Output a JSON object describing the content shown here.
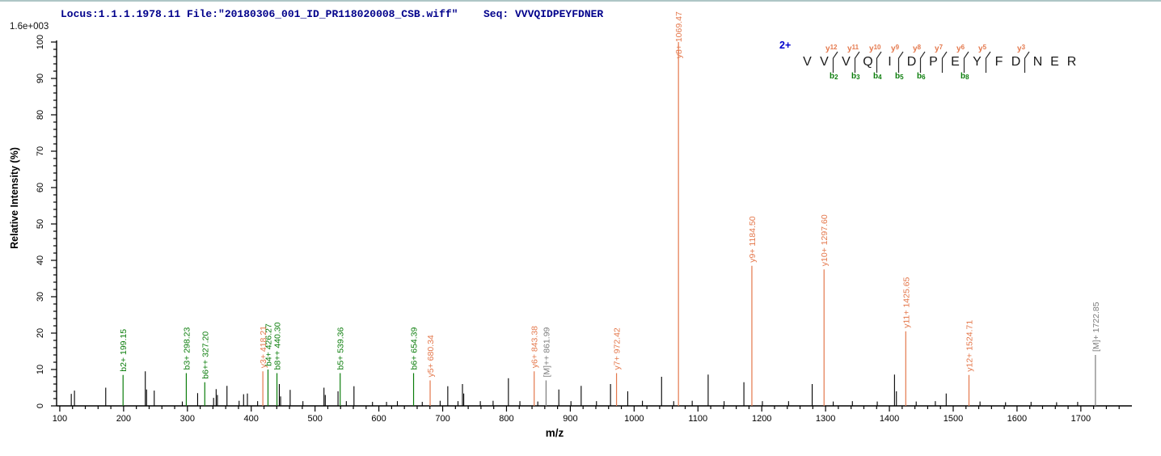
{
  "header": {
    "locus_file": "Locus:1.1.1.1978.11 File:\"20180306_001_ID_PR118020008_CSB.wiff\"",
    "seq_label": "Seq: VVVQIDPEYFDNER",
    "intensity_scale": "1.6e+003"
  },
  "colors": {
    "header_text": "#00008b",
    "charge_text": "#0000cc",
    "y_ion": "#e4784c",
    "b_ion": "#0b7d0b",
    "precursor": "#7d7d7d",
    "unlabeled_peak": "#000000",
    "axis": "#000000",
    "residue_text": "#1a1a1a",
    "marker_stroke": "#2a2a2a"
  },
  "peptide": {
    "charge_label": "2+",
    "residues": [
      "V",
      "V",
      "V",
      "Q",
      "I",
      "D",
      "P",
      "E",
      "Y",
      "F",
      "D",
      "N",
      "E",
      "R"
    ],
    "cleavages": [
      {
        "after": 2,
        "y": "y12",
        "b": "b2"
      },
      {
        "after": 3,
        "y": "y11",
        "b": "b3"
      },
      {
        "after": 4,
        "y": "y10",
        "b": "b4"
      },
      {
        "after": 5,
        "y": "y9",
        "b": "b5"
      },
      {
        "after": 6,
        "y": "y8",
        "b": "b6"
      },
      {
        "after": 7,
        "y": "y7",
        "b": null
      },
      {
        "after": 8,
        "y": "y6",
        "b": "b8"
      },
      {
        "after": 9,
        "y": "y5",
        "b": null
      },
      {
        "after": 11,
        "y": "y3",
        "b": null
      }
    ]
  },
  "chart_data": {
    "type": "bar",
    "subtype": "ms2-stick-spectrum",
    "title": "",
    "xlabel": "m/z",
    "ylabel": "Relative  Intensity (%)",
    "xlim": [
      95,
      1780
    ],
    "ylim": [
      0,
      100
    ],
    "grid": false,
    "x_ticks": {
      "major_start": 100,
      "major_end": 1700,
      "major_step": 100,
      "minor_step": 20,
      "minor_end": 1760
    },
    "y_ticks": {
      "major_step": 10,
      "minor_step": 2
    },
    "labeled_peaks": [
      {
        "label": "b2+ 199.15",
        "mz": 199.15,
        "intensity": 8.5,
        "type": "b"
      },
      {
        "label": "b3+ 298.23",
        "mz": 298.23,
        "intensity": 9,
        "type": "b"
      },
      {
        "label": "b6++ 327.20",
        "mz": 327.2,
        "intensity": 6.5,
        "type": "b"
      },
      {
        "label": "y3+ 418.21",
        "mz": 418.21,
        "intensity": 9.5,
        "type": "y"
      },
      {
        "label": "b4+ 426.27",
        "mz": 426.27,
        "intensity": 10,
        "type": "b"
      },
      {
        "label": "b8++ 440.30",
        "mz": 440.3,
        "intensity": 9,
        "type": "b"
      },
      {
        "label": "b5+ 539.36",
        "mz": 539.36,
        "intensity": 9,
        "type": "b"
      },
      {
        "label": "b6+ 654.39",
        "mz": 654.39,
        "intensity": 9,
        "type": "b"
      },
      {
        "label": "y5+ 680.34",
        "mz": 680.34,
        "intensity": 7,
        "type": "y"
      },
      {
        "label": "y6+ 843.38",
        "mz": 843.38,
        "intensity": 9.5,
        "type": "y"
      },
      {
        "label": "[M]++ 861.99",
        "mz": 861.99,
        "intensity": 7,
        "type": "M"
      },
      {
        "label": "y7+ 972.42",
        "mz": 972.42,
        "intensity": 9,
        "type": "y"
      },
      {
        "label": "y8+ 1069.47",
        "mz": 1069.47,
        "intensity": 100,
        "type": "y"
      },
      {
        "label": "y9+ 1184.50",
        "mz": 1184.5,
        "intensity": 38.5,
        "type": "y"
      },
      {
        "label": "y10+ 1297.60",
        "mz": 1297.6,
        "intensity": 37.5,
        "type": "y"
      },
      {
        "label": "y11+ 1425.65",
        "mz": 1425.65,
        "intensity": 20.5,
        "type": "y"
      },
      {
        "label": "y12+ 1524.71",
        "mz": 1524.71,
        "intensity": 8.5,
        "type": "y"
      },
      {
        "label": "[M]+ 1722.85",
        "mz": 1722.85,
        "intensity": 14,
        "type": "M"
      }
    ],
    "unlabeled_peaks": [
      [
        118,
        3.3
      ],
      [
        123,
        4.2
      ],
      [
        172,
        5
      ],
      [
        234,
        9.5
      ],
      [
        236,
        4.5
      ],
      [
        248,
        4.2
      ],
      [
        292,
        1.2
      ],
      [
        316,
        3.5
      ],
      [
        341,
        2.2
      ],
      [
        345,
        4.6
      ],
      [
        347,
        3
      ],
      [
        362,
        5.5
      ],
      [
        381,
        1.4
      ],
      [
        388,
        3.2
      ],
      [
        394,
        3.4
      ],
      [
        410,
        1.3
      ],
      [
        444,
        6
      ],
      [
        446,
        2.6
      ],
      [
        461,
        4.4
      ],
      [
        481,
        1.3
      ],
      [
        514,
        5
      ],
      [
        516,
        3
      ],
      [
        536,
        4
      ],
      [
        549,
        1.3
      ],
      [
        561,
        5.4
      ],
      [
        590,
        1.1
      ],
      [
        612,
        1.1
      ],
      [
        629,
        1.3
      ],
      [
        668,
        1.1
      ],
      [
        696,
        1.4
      ],
      [
        708,
        5.4
      ],
      [
        724,
        1.3
      ],
      [
        731,
        6
      ],
      [
        733,
        3.4
      ],
      [
        759,
        1.3
      ],
      [
        779,
        1.4
      ],
      [
        803,
        7.6
      ],
      [
        821,
        1.3
      ],
      [
        849,
        1.2
      ],
      [
        882,
        4.5
      ],
      [
        901,
        1.3
      ],
      [
        917,
        5.5
      ],
      [
        941,
        1.3
      ],
      [
        963,
        6
      ],
      [
        990,
        4
      ],
      [
        1013,
        1.4
      ],
      [
        1043,
        8
      ],
      [
        1062,
        1.3
      ],
      [
        1091,
        1.4
      ],
      [
        1116,
        8.6
      ],
      [
        1141,
        1.3
      ],
      [
        1172,
        6.5
      ],
      [
        1201,
        1.3
      ],
      [
        1242,
        1.3
      ],
      [
        1279,
        6
      ],
      [
        1312,
        1.2
      ],
      [
        1342,
        1.3
      ],
      [
        1381,
        1.2
      ],
      [
        1408,
        8.6
      ],
      [
        1411,
        4
      ],
      [
        1442,
        1.2
      ],
      [
        1472,
        1.3
      ],
      [
        1489,
        3.4
      ],
      [
        1542,
        1.2
      ],
      [
        1582,
        1
      ],
      [
        1622,
        1.1
      ],
      [
        1662,
        1
      ],
      [
        1695,
        1.1
      ]
    ]
  }
}
